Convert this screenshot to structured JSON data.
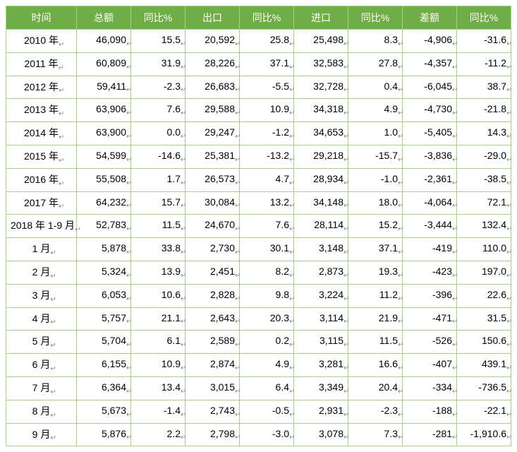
{
  "headers": [
    "时间",
    "总额",
    "同比%",
    "出口",
    "同比%",
    "进口",
    "同比%",
    "差额",
    "同比%"
  ],
  "marker": "↵",
  "header_bg": "#70ad47",
  "header_fg": "#ffffff",
  "border_color": "#a8d08d",
  "rows": [
    {
      "time": "2010 年",
      "total": "46,090",
      "total_yoy": "15.5",
      "export": "20,592",
      "export_yoy": "25.8",
      "import": "25,498",
      "import_yoy": "8.3",
      "diff": "-4,906",
      "diff_yoy": "-31.6"
    },
    {
      "time": "2011 年",
      "total": "60,809",
      "total_yoy": "31.9",
      "export": "28,226",
      "export_yoy": "37.1",
      "import": "32,583",
      "import_yoy": "27.8",
      "diff": "-4,357",
      "diff_yoy": "-11.2"
    },
    {
      "time": "2012 年",
      "total": "59,411",
      "total_yoy": "-2.3",
      "export": "26,683",
      "export_yoy": "-5.5",
      "import": "32,728",
      "import_yoy": "0.4",
      "diff": "-6,045",
      "diff_yoy": "38.7"
    },
    {
      "time": "2013 年",
      "total": "63,906",
      "total_yoy": "7.6",
      "export": "29,588",
      "export_yoy": "10.9",
      "import": "34,318",
      "import_yoy": "4.9",
      "diff": "-4,730",
      "diff_yoy": "-21.8"
    },
    {
      "time": "2014 年",
      "total": "63,900",
      "total_yoy": "0.0",
      "export": "29,247",
      "export_yoy": "-1.2",
      "import": "34,653",
      "import_yoy": "1.0",
      "diff": "-5,405",
      "diff_yoy": "14.3"
    },
    {
      "time": "2015 年",
      "total": "54,599",
      "total_yoy": "-14.6",
      "export": "25,381",
      "export_yoy": "-13.2",
      "import": "29,218",
      "import_yoy": "-15.7",
      "diff": "-3,836",
      "diff_yoy": "-29.0"
    },
    {
      "time": "2016 年",
      "total": "55,508",
      "total_yoy": "1.7",
      "export": "26,573",
      "export_yoy": "4.7",
      "import": "28,934",
      "import_yoy": "-1.0",
      "diff": "-2,361",
      "diff_yoy": "-38.5"
    },
    {
      "time": "2017 年",
      "total": "64,232",
      "total_yoy": "15.7",
      "export": "30,084",
      "export_yoy": "13.2",
      "import": "34,148",
      "import_yoy": "18.0",
      "diff": "-4,064",
      "diff_yoy": "72.1"
    },
    {
      "time": "2018 年 1-9 月",
      "total": "52,783",
      "total_yoy": "11.5",
      "export": "24,670",
      "export_yoy": "7.6",
      "import": "28,114",
      "import_yoy": "15.2",
      "diff": "-3,444",
      "diff_yoy": "132.4"
    },
    {
      "time": "1 月",
      "total": "5,878",
      "total_yoy": "33.8",
      "export": "2,730",
      "export_yoy": "30.1",
      "import": "3,148",
      "import_yoy": "37.1",
      "diff": "-419",
      "diff_yoy": "110.0"
    },
    {
      "time": "2 月",
      "total": "5,324",
      "total_yoy": "13.9",
      "export": "2,451",
      "export_yoy": "8.2",
      "import": "2,873",
      "import_yoy": "19.3",
      "diff": "-423",
      "diff_yoy": "197.0"
    },
    {
      "time": "3 月",
      "total": "6,053",
      "total_yoy": "10.6",
      "export": "2,828",
      "export_yoy": "9.8",
      "import": "3,224",
      "import_yoy": "11.2",
      "diff": "-396",
      "diff_yoy": "22.6"
    },
    {
      "time": "4 月",
      "total": "5,757",
      "total_yoy": "21.1",
      "export": "2,643",
      "export_yoy": "20.3",
      "import": "3,114",
      "import_yoy": "21.9",
      "diff": "-471",
      "diff_yoy": "31.5"
    },
    {
      "time": "5 月",
      "total": "5,704",
      "total_yoy": "6.1",
      "export": "2,589",
      "export_yoy": "0.2",
      "import": "3,115",
      "import_yoy": "11.5",
      "diff": "-526",
      "diff_yoy": "150.6"
    },
    {
      "time": "6 月",
      "total": "6,155",
      "total_yoy": "10.9",
      "export": "2,874",
      "export_yoy": "4.9",
      "import": "3,281",
      "import_yoy": "16.6",
      "diff": "-407",
      "diff_yoy": "439.1"
    },
    {
      "time": "7 月",
      "total": "6,364",
      "total_yoy": "13.4",
      "export": "3,015",
      "export_yoy": "6.4",
      "import": "3,349",
      "import_yoy": "20.4",
      "diff": "-334",
      "diff_yoy": "-736.5"
    },
    {
      "time": "8 月",
      "total": "5,673",
      "total_yoy": "-1.4",
      "export": "2,743",
      "export_yoy": "-0.5",
      "import": "2,931",
      "import_yoy": "-2.3",
      "diff": "-188",
      "diff_yoy": "-22.1"
    },
    {
      "time": "9 月",
      "total": "5,876",
      "total_yoy": "2.2",
      "export": "2,798",
      "export_yoy": "-3.0",
      "import": "3,078",
      "import_yoy": "7.3",
      "diff": "-281",
      "diff_yoy": "-1,910.6"
    }
  ]
}
